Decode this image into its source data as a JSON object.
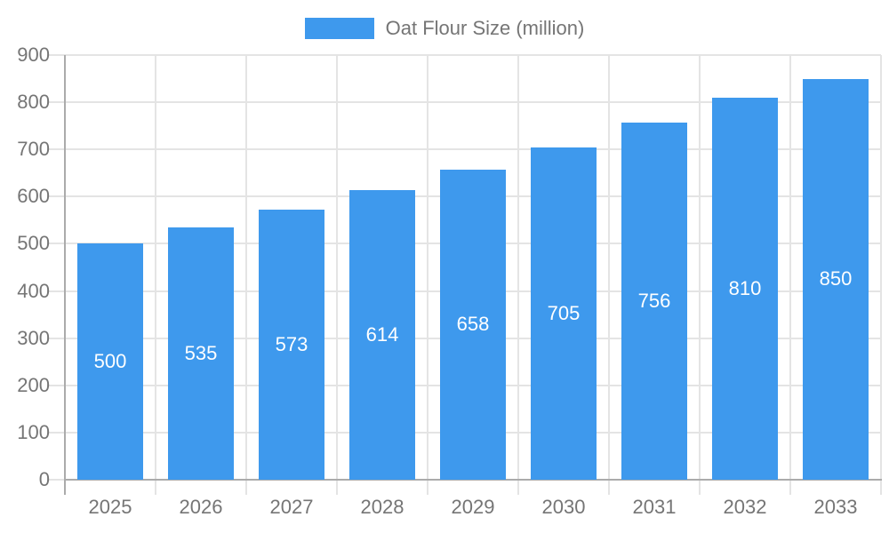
{
  "legend": {
    "label": "Oat Flour Size (million)"
  },
  "chart_data": {
    "type": "bar",
    "title": "Oat Flour Size (million)",
    "categories": [
      "2025",
      "2026",
      "2027",
      "2028",
      "2029",
      "2030",
      "2031",
      "2032",
      "2033"
    ],
    "values": [
      500,
      535,
      573,
      614,
      658,
      705,
      756,
      810,
      850
    ],
    "xlabel": "",
    "ylabel": "",
    "ylim": [
      0,
      900
    ],
    "yticks": [
      0,
      100,
      200,
      300,
      400,
      500,
      600,
      700,
      800,
      900
    ],
    "grid": true,
    "legend_position": "top",
    "colors": {
      "bar": "#3e99ed",
      "value_label": "#ffffff",
      "axis_text": "#757575",
      "gridline": "#e4e4e4",
      "axis_line": "#ababab"
    }
  }
}
